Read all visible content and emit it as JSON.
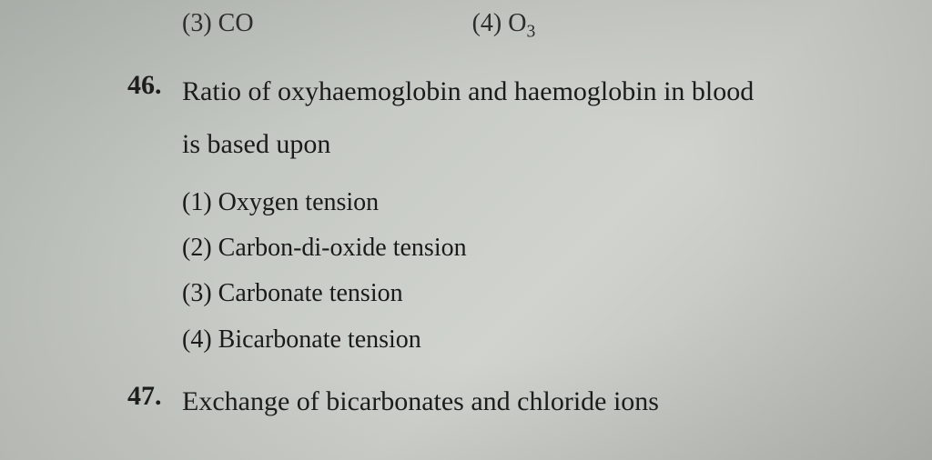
{
  "previous_question": {
    "options": [
      {
        "num": "(3)",
        "text": "CO"
      },
      {
        "num": "(4)",
        "text_html": "O<sub>3</sub>"
      }
    ]
  },
  "question_46": {
    "number": "46.",
    "text_line1": "Ratio of oxyhaemoglobin and haemoglobin in blood",
    "text_line2": "is based upon",
    "options": [
      "(1) Oxygen tension",
      "(2) Carbon-di-oxide tension",
      "(3) Carbonate tension",
      "(4) Bicarbonate tension"
    ]
  },
  "question_47": {
    "number": "47.",
    "text_partial": "Exchange of bicarbonates and chloride ions"
  },
  "styling": {
    "background_gradient": [
      "#b8bdb8",
      "#c5c9c3",
      "#d0d3ce",
      "#b5b8b3"
    ],
    "text_color": "#1a1a1a",
    "font_family": "Georgia, Times New Roman, serif",
    "question_fontsize": 30,
    "option_fontsize": 28,
    "number_weight": "bold"
  }
}
